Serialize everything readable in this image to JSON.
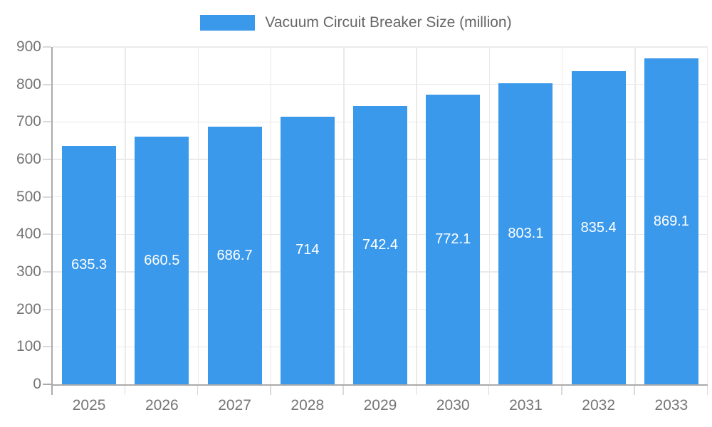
{
  "chart_data": {
    "type": "bar",
    "title": "",
    "legend": "Vacuum Circuit Breaker Size (million)",
    "legend_position": "top",
    "categories": [
      "2025",
      "2026",
      "2027",
      "2028",
      "2029",
      "2030",
      "2031",
      "2032",
      "2033"
    ],
    "series": [
      {
        "name": "Vacuum Circuit Breaker Size (million)",
        "values": [
          635.3,
          660.5,
          686.7,
          714,
          742.4,
          772.1,
          803.1,
          835.4,
          869.1
        ]
      }
    ],
    "value_labels": [
      "635.3",
      "660.5",
      "686.7",
      "714",
      "742.4",
      "772.1",
      "803.1",
      "835.4",
      "869.1"
    ],
    "xlabel": "",
    "ylabel": "",
    "ylim": [
      0,
      900
    ],
    "ytick_interval": 100,
    "yticks": [
      0,
      100,
      200,
      300,
      400,
      500,
      600,
      700,
      800,
      900
    ],
    "grid": true
  },
  "colors": {
    "bar": "#3B99EB",
    "grid": "#EAEAEA",
    "axis_line": "#ABABAB",
    "tick": "#D9D9D9",
    "axis_label": "#757575",
    "legend_text": "#666666",
    "value_label": "#FFFFFF"
  }
}
